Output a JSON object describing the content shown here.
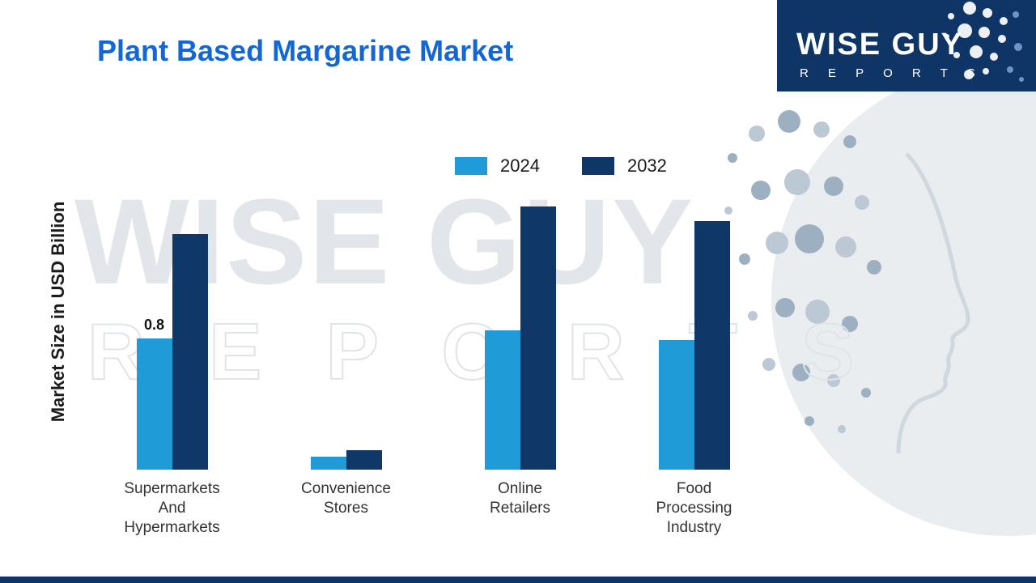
{
  "page_title": "Plant Based Margarine Market",
  "logo": {
    "line1": "WISE GUY",
    "line2": "R E P O R T S"
  },
  "watermark": {
    "line1": "WISE GUY",
    "line2": "R E P O R T S"
  },
  "colors": {
    "title": "#1366d6",
    "series_2024": "#1f9cd8",
    "series_2032": "#0f3767",
    "logo_background": "#0e3566",
    "footer_bar": "#0e3566",
    "watermark": "#e2e6ea"
  },
  "chart_data": {
    "type": "bar",
    "title": "Plant Based Margarine Market",
    "ylabel": "Market Size in USD Billion",
    "xlabel": "",
    "ylim": [
      0,
      1.8
    ],
    "grid": false,
    "legend_position": "top-center",
    "categories": [
      "Supermarkets And Hypermarkets",
      "Convenience Stores",
      "Online Retailers",
      "Food Processing Industry"
    ],
    "category_lines": [
      [
        "Supermarkets",
        "And",
        "Hypermarkets"
      ],
      [
        "Convenience",
        "Stores"
      ],
      [
        "Online",
        "Retailers"
      ],
      [
        "Food",
        "Processing",
        "Industry"
      ]
    ],
    "series": [
      {
        "name": "2024",
        "color": "#1f9cd8",
        "values": [
          0.8,
          0.08,
          0.85,
          0.79
        ]
      },
      {
        "name": "2032",
        "color": "#0f3767",
        "values": [
          1.44,
          0.12,
          1.61,
          1.52
        ]
      }
    ],
    "annotations": [
      {
        "series_index": 0,
        "category_index": 0,
        "label": "0.8"
      }
    ]
  }
}
